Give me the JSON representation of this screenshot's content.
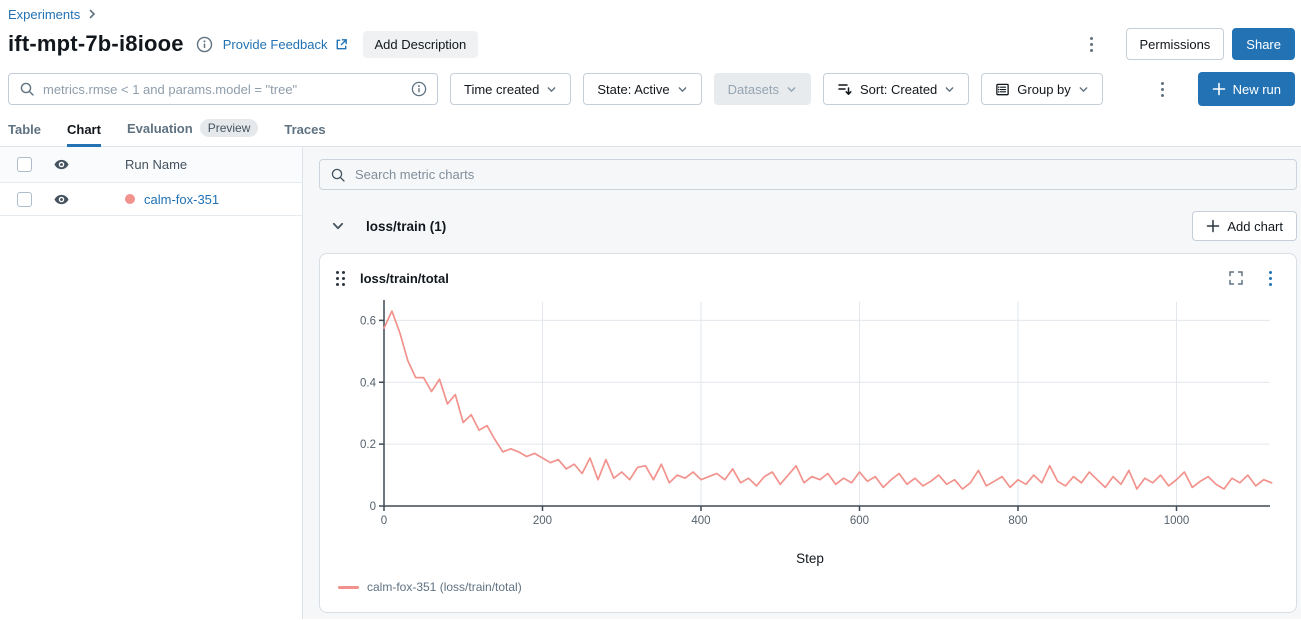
{
  "colors": {
    "primary_blue": "#2272B4",
    "run_color": "#F2928C",
    "grid": "#E2E7ED",
    "axis": "#3E4A55",
    "tick_label": "#55616C"
  },
  "breadcrumb": {
    "experiments": "Experiments"
  },
  "header": {
    "title": "ift-mpt-7b-i8iooe",
    "provide_feedback": "Provide Feedback",
    "add_description": "Add Description",
    "permissions": "Permissions",
    "share": "Share"
  },
  "filters": {
    "search_placeholder": "metrics.rmse < 1 and params.model = \"tree\"",
    "time_created": "Time created",
    "state": "State: Active",
    "datasets": "Datasets",
    "sort": "Sort: Created",
    "group_by": "Group by",
    "new_run": "New run"
  },
  "tabs": {
    "table": "Table",
    "chart": "Chart",
    "evaluation": "Evaluation",
    "preview_badge": "Preview",
    "traces": "Traces"
  },
  "runs_panel": {
    "column_header": "Run Name",
    "runs": [
      {
        "name": "calm-fox-351",
        "color": "#F2928C"
      }
    ]
  },
  "charts_panel": {
    "search_placeholder": "Search metric charts",
    "section_title": "loss/train (1)",
    "add_chart": "Add chart",
    "chart_title": "loss/train/total"
  },
  "chart_data": {
    "type": "line",
    "title": "loss/train/total",
    "xlabel": "Step",
    "ylabel": "",
    "xlim": [
      0,
      1118
    ],
    "ylim": [
      0,
      0.64
    ],
    "xticks": [
      0,
      200,
      400,
      600,
      800,
      1000
    ],
    "yticks": [
      0,
      0.2,
      0.4,
      0.6
    ],
    "grid": true,
    "legend_position": "bottom-left",
    "series": [
      {
        "name": "calm-fox-351 (loss/train/total)",
        "run": "calm-fox-351",
        "color": "#F2928C",
        "x": [
          0,
          10,
          20,
          30,
          40,
          50,
          60,
          70,
          80,
          90,
          100,
          110,
          120,
          130,
          140,
          150,
          160,
          170,
          180,
          190,
          200,
          210,
          220,
          230,
          240,
          250,
          260,
          270,
          280,
          290,
          300,
          310,
          320,
          330,
          340,
          350,
          360,
          370,
          380,
          390,
          400,
          410,
          420,
          430,
          440,
          450,
          460,
          470,
          480,
          490,
          500,
          510,
          520,
          530,
          540,
          550,
          560,
          570,
          580,
          590,
          600,
          610,
          620,
          630,
          640,
          650,
          660,
          670,
          680,
          690,
          700,
          710,
          720,
          730,
          740,
          750,
          760,
          770,
          780,
          790,
          800,
          810,
          820,
          830,
          840,
          850,
          860,
          870,
          880,
          890,
          900,
          910,
          920,
          930,
          940,
          950,
          960,
          970,
          980,
          990,
          1000,
          1010,
          1020,
          1030,
          1040,
          1050,
          1060,
          1070,
          1080,
          1090,
          1100,
          1110,
          1120
        ],
        "y": [
          0.575,
          0.63,
          0.56,
          0.47,
          0.415,
          0.415,
          0.37,
          0.41,
          0.33,
          0.36,
          0.27,
          0.295,
          0.245,
          0.26,
          0.215,
          0.175,
          0.185,
          0.175,
          0.16,
          0.17,
          0.155,
          0.14,
          0.15,
          0.12,
          0.135,
          0.105,
          0.155,
          0.085,
          0.15,
          0.09,
          0.11,
          0.085,
          0.125,
          0.13,
          0.085,
          0.135,
          0.075,
          0.1,
          0.09,
          0.11,
          0.085,
          0.095,
          0.105,
          0.085,
          0.12,
          0.075,
          0.09,
          0.065,
          0.095,
          0.11,
          0.07,
          0.1,
          0.13,
          0.075,
          0.095,
          0.085,
          0.105,
          0.07,
          0.09,
          0.075,
          0.11,
          0.08,
          0.095,
          0.06,
          0.085,
          0.105,
          0.07,
          0.09,
          0.065,
          0.08,
          0.1,
          0.07,
          0.085,
          0.055,
          0.075,
          0.115,
          0.065,
          0.08,
          0.095,
          0.06,
          0.085,
          0.07,
          0.1,
          0.075,
          0.13,
          0.08,
          0.065,
          0.095,
          0.075,
          0.11,
          0.085,
          0.06,
          0.095,
          0.07,
          0.115,
          0.055,
          0.09,
          0.075,
          0.1,
          0.065,
          0.085,
          0.11,
          0.06,
          0.08,
          0.095,
          0.07,
          0.055,
          0.09,
          0.075,
          0.1,
          0.065,
          0.085,
          0.075
        ]
      }
    ]
  }
}
